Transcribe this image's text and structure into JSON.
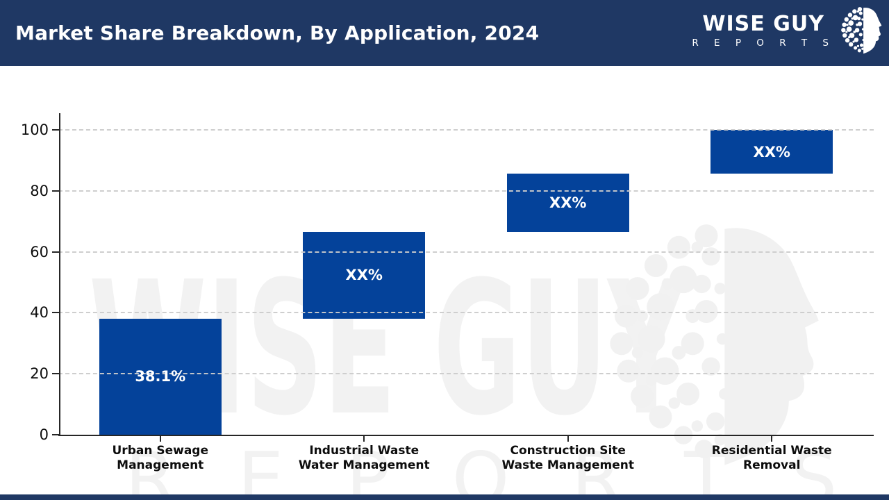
{
  "header": {
    "title": "Market Share Breakdown, By Application, 2024"
  },
  "brand": {
    "name": "WISE GUY",
    "reports": "R E P O R T S"
  },
  "watermark": {
    "line1": "WISE GUY",
    "line2": "R E P O R T S"
  },
  "colors": {
    "header_bg": "#1f3864",
    "bar": "#04429a",
    "bar_label": "#ffffff",
    "grid": "#cbcbcb",
    "axis": "#262626",
    "watermark": "#f2f2f2"
  },
  "chart_data": {
    "type": "bar",
    "subtype": "waterfall",
    "title": "Market Share Breakdown, By Application, 2024",
    "xlabel": "",
    "ylabel": "",
    "ylim": [
      0,
      100
    ],
    "yticks": [
      0,
      20,
      40,
      60,
      80,
      100
    ],
    "grid": "horizontal-dashed",
    "legend": "none",
    "categories": [
      "Urban Sewage\nManagement",
      "Industrial Waste\nWater Management",
      "Construction Site\nWaste Management",
      "Residential Waste\nRemoval"
    ],
    "bars": [
      {
        "category": "Urban Sewage Management",
        "start": 0,
        "end": 38.1,
        "value": 38.1,
        "label": "38.1%"
      },
      {
        "category": "Industrial Waste Water Management",
        "start": 38.1,
        "end": 66.5,
        "value": 28.4,
        "label": "XX%"
      },
      {
        "category": "Construction Site Waste Management",
        "start": 66.5,
        "end": 85.6,
        "value": 19.1,
        "label": "XX%"
      },
      {
        "category": "Residential Waste Removal",
        "start": 85.6,
        "end": 100,
        "value": 14.4,
        "label": "XX%"
      }
    ]
  }
}
